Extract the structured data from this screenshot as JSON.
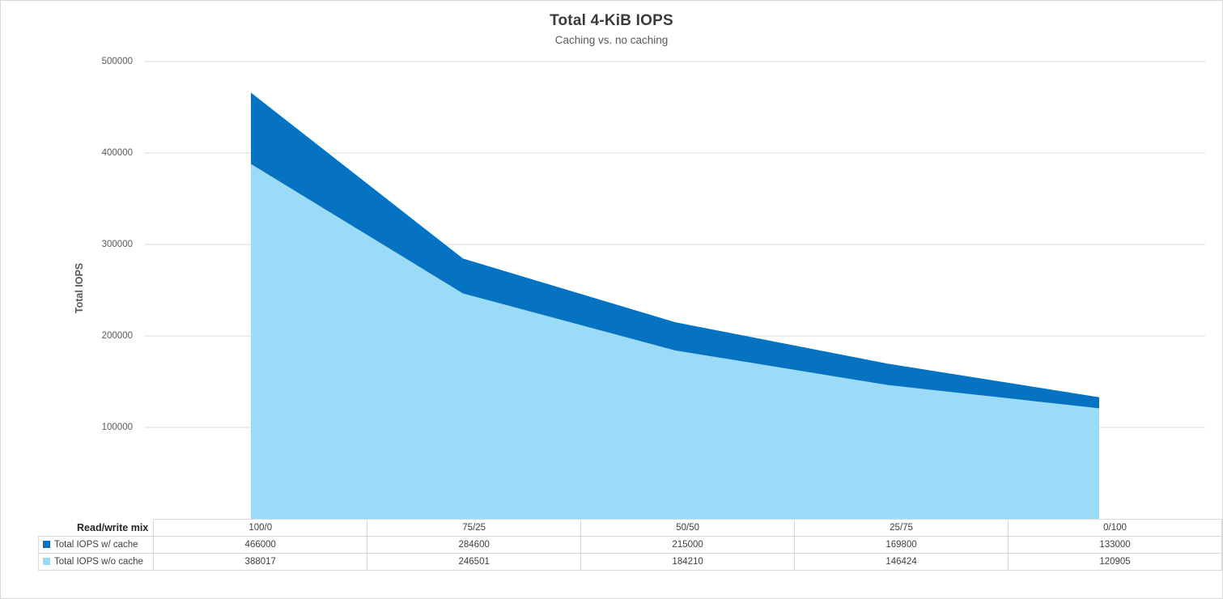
{
  "chart": {
    "title": "Total 4-KiB IOPS",
    "subtitle": "Caching vs. no caching",
    "y_axis_title": "Total IOPS"
  },
  "chart_data": {
    "type": "area",
    "title": "Total 4-KiB IOPS",
    "subtitle": "Caching vs. no caching",
    "xlabel": "Read/write mix",
    "ylabel": "Total IOPS",
    "categories": [
      "100/0",
      "75/25",
      "50/50",
      "25/75",
      "0/100"
    ],
    "category_axis_label": "Read/write mix",
    "series": [
      {
        "name": "Total IOPS w/ cache",
        "values": [
          466000,
          284600,
          215000,
          169800,
          133000
        ],
        "color": "#0672c2"
      },
      {
        "name": "Total IOPS w/o cache",
        "values": [
          388017,
          246501,
          184210,
          146424,
          120905
        ],
        "color": "#9adbf8"
      }
    ],
    "ylim": [
      0,
      500000
    ],
    "y_ticks": [
      100000,
      200000,
      300000,
      400000,
      500000
    ],
    "y_tick_labels": [
      "100000",
      "200000",
      "300000",
      "400000",
      "500000"
    ],
    "grid": "horizontal",
    "gridline_color": "#d9d9d9",
    "legend_position": "data-table-left",
    "data_table_shown": true
  }
}
